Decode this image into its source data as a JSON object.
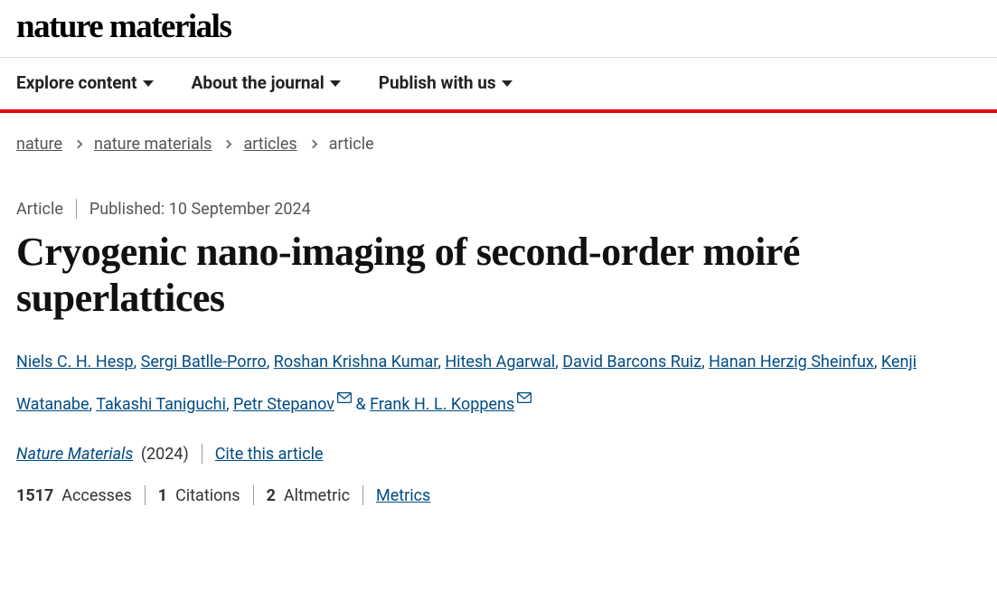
{
  "logo": "nature materials",
  "nav": {
    "items": [
      {
        "label": "Explore content"
      },
      {
        "label": "About the journal"
      },
      {
        "label": "Publish with us"
      }
    ]
  },
  "breadcrumb": {
    "links": [
      {
        "label": "nature"
      },
      {
        "label": "nature materials"
      },
      {
        "label": "articles"
      }
    ],
    "current": "article"
  },
  "meta": {
    "type": "Article",
    "published_label": "Published:",
    "published_date": "10 September 2024"
  },
  "title": "Cryogenic nano-imaging of second-order moiré superlattices",
  "authors": [
    {
      "name": "Niels C. H. Hesp",
      "corresponding": false
    },
    {
      "name": "Sergi Batlle-Porro",
      "corresponding": false
    },
    {
      "name": "Roshan Krishna Kumar",
      "corresponding": false
    },
    {
      "name": "Hitesh Agarwal",
      "corresponding": false
    },
    {
      "name": "David Barcons Ruiz",
      "corresponding": false
    },
    {
      "name": "Hanan Herzig Sheinfux",
      "corresponding": false
    },
    {
      "name": "Kenji Watanabe",
      "corresponding": false
    },
    {
      "name": "Takashi Taniguchi",
      "corresponding": false
    },
    {
      "name": "Petr Stepanov",
      "corresponding": true
    },
    {
      "name": "Frank H. L. Koppens",
      "corresponding": true
    }
  ],
  "journal": {
    "name": "Nature Materials",
    "year": "(2024)",
    "cite_label": "Cite this article"
  },
  "metrics": {
    "accesses": {
      "value": "1517",
      "label": "Accesses"
    },
    "citations": {
      "value": "1",
      "label": "Citations"
    },
    "altmetric": {
      "value": "2",
      "label": "Altmetric"
    },
    "link": "Metrics"
  },
  "colors": {
    "accent_red": "#e30613",
    "link_blue": "#004b83",
    "text": "#222222",
    "muted": "#555555"
  }
}
